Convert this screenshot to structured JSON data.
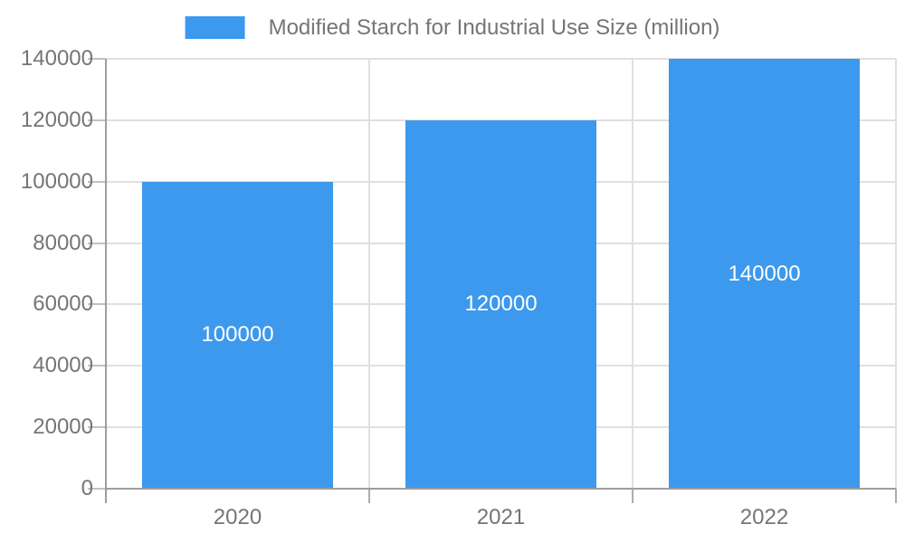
{
  "legend": {
    "series_label": "Modified Starch for Industrial Use Size (million)"
  },
  "colors": {
    "bar": "#3D99ED",
    "axis": "#9E9E9E",
    "grid": "#E0E0E0",
    "tick_mark": "#C2C2C2",
    "x_tick_mark": "#ADADAD",
    "tick_label": "#757575",
    "legend_label": "#757575",
    "bar_label": "#FFFFFF",
    "background": "#FFFFFF"
  },
  "chart_data": {
    "type": "bar",
    "title": "Modified Starch for Industrial Use Size (million)",
    "categories": [
      "2020",
      "2021",
      "2022"
    ],
    "values": [
      100000,
      120000,
      140000
    ],
    "data_labels": [
      "100000",
      "120000",
      "140000"
    ],
    "xlabel": "",
    "ylabel": "",
    "ylim": [
      0,
      140000
    ],
    "yticks": [
      0,
      20000,
      40000,
      60000,
      80000,
      100000,
      120000,
      140000
    ],
    "ytick_labels": [
      "0",
      "20000",
      "40000",
      "60000",
      "80000",
      "100000",
      "120000",
      "140000"
    ],
    "grid": true,
    "legend_position": "top",
    "bar_label_position": "inside-center"
  }
}
